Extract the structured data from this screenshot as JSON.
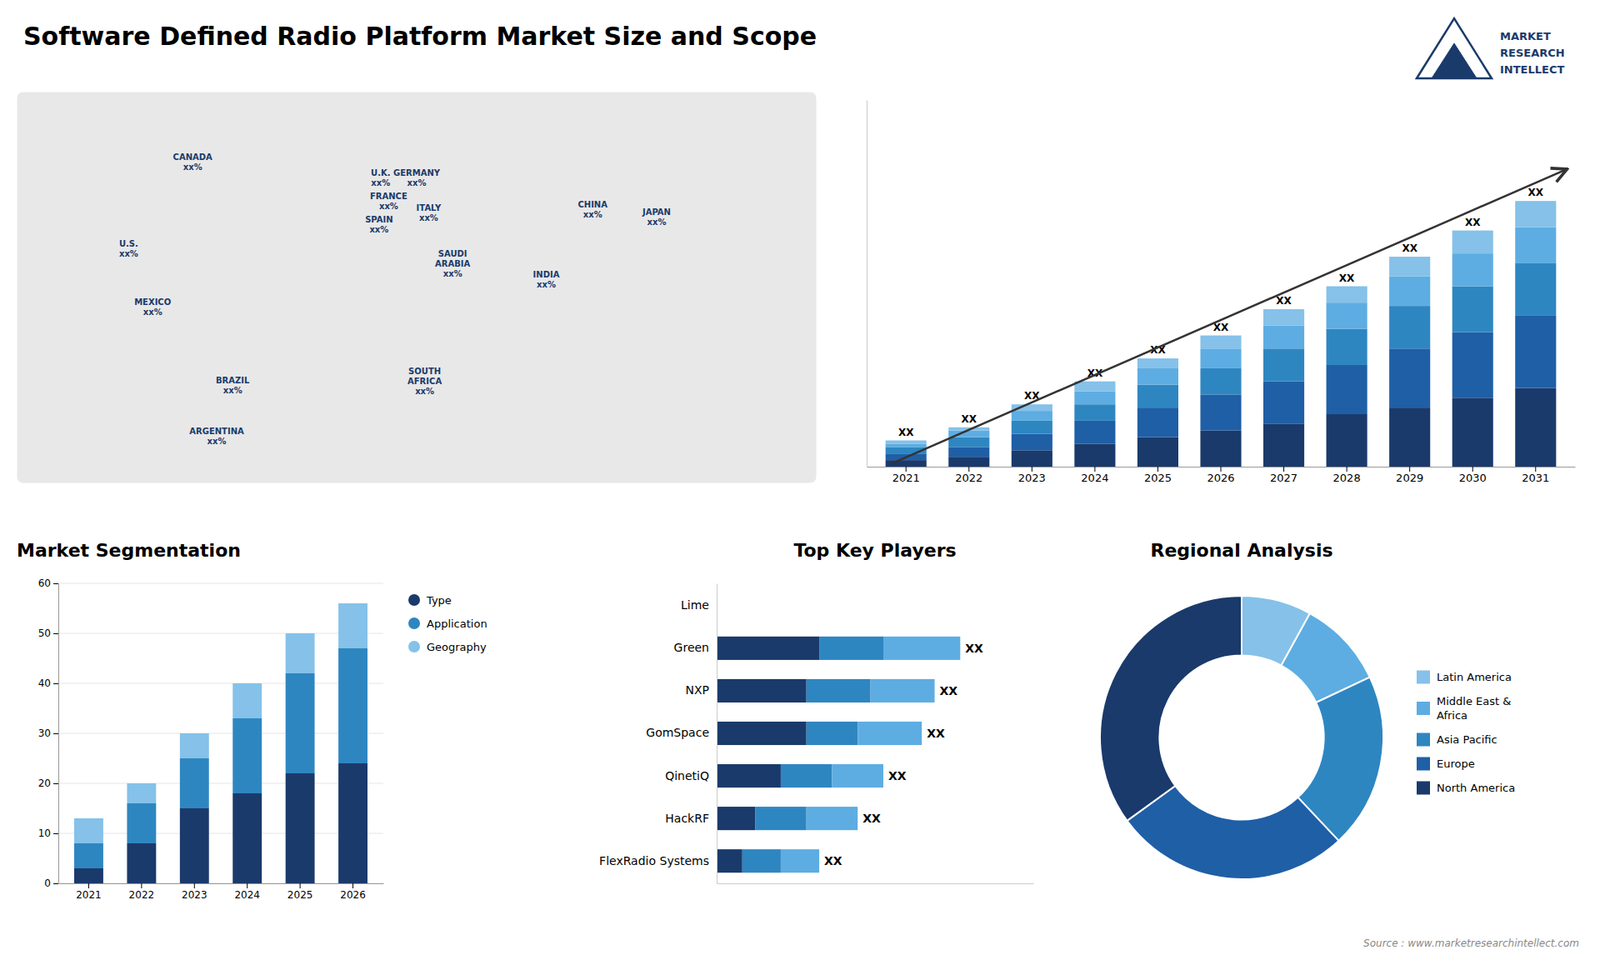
{
  "title": "Software Defined Radio Platform Market Size and Scope",
  "source": "Source : www.marketresearchintellect.com",
  "logo_text": [
    "MARKET",
    "RESEARCH",
    "INTELLECT"
  ],
  "logo_color": "#1a3a6b",
  "chart_data": [
    {
      "type": "map",
      "color": "#e8e8e8",
      "categories": [
        "CANADA",
        "U.S.",
        "MEXICO",
        "BRAZIL",
        "ARGENTINA",
        "U.K.",
        "FRANCE",
        "SPAIN",
        "GERMANY",
        "ITALY",
        "SAUDI\nARABIA",
        "SOUTH\nAFRICA",
        "CHINA",
        "INDIA",
        "JAPAN"
      ],
      "annotations": [
        "xx%",
        "xx%",
        "xx%",
        "xx%",
        "xx%",
        "xx%",
        "xx%",
        "xx%",
        "xx%",
        "xx%",
        "xx%",
        "xx%",
        "xx%",
        "xx%",
        "xx%"
      ]
    },
    {
      "type": "bar",
      "stacked": true,
      "categories": [
        "2021",
        "2022",
        "2023",
        "2024",
        "2025",
        "2026",
        "2027",
        "2028",
        "2029",
        "2030",
        "2031"
      ],
      "series": [
        {
          "color": "#1a3a6b",
          "values": [
            2,
            3,
            5,
            7,
            9,
            11,
            13,
            16,
            18,
            21,
            24
          ]
        },
        {
          "color": "#1f5fa6",
          "values": [
            2,
            3,
            5,
            7,
            9,
            11,
            13,
            15,
            18,
            20,
            22
          ]
        },
        {
          "color": "#2E86C1",
          "values": [
            2,
            3,
            4,
            5,
            7,
            8,
            10,
            11,
            13,
            14,
            16
          ]
        },
        {
          "color": "#5dade2",
          "values": [
            1,
            2,
            3,
            4,
            5,
            6,
            7,
            8,
            9,
            10,
            11
          ]
        },
        {
          "color": "#85C1E9",
          "values": [
            1,
            1,
            2,
            3,
            3,
            4,
            5,
            5,
            6,
            7,
            8
          ]
        }
      ],
      "ylim": [
        0,
        111.78
      ],
      "tick_labels": "x",
      "annotation": "XX",
      "arrow_y": [
        1.2,
        90.72
      ]
    },
    {
      "type": "bar",
      "stacked": true,
      "title": "Market Segmentation",
      "categories": [
        "2021",
        "2022",
        "2023",
        "2024",
        "2025",
        "2026"
      ],
      "series": [
        {
          "name": "Type",
          "color": "#1a3a6b",
          "values": [
            3,
            8,
            15,
            18,
            22,
            24
          ]
        },
        {
          "name": "Application",
          "color": "#2E86C1",
          "values": [
            5,
            8,
            10,
            15,
            20,
            23
          ]
        },
        {
          "name": "Geography",
          "color": "#85C1E9",
          "values": [
            5,
            4,
            5,
            7,
            8,
            9
          ]
        }
      ],
      "ylim": [
        0,
        60
      ],
      "yticks": [
        0,
        10,
        20,
        30,
        40,
        50,
        60
      ],
      "grid": true,
      "legend": "right"
    },
    {
      "type": "bar",
      "orientation": "horizontal",
      "stacked": true,
      "title": "Top Key Players",
      "categories": [
        "FlexRadio Systems",
        "HackRF",
        "QinetiQ",
        "GomSpace",
        "NXP",
        "Green",
        "Lime"
      ],
      "series": [
        {
          "color": "#1a3a6b",
          "values": [
            2,
            3,
            5,
            7,
            7,
            8,
            0
          ]
        },
        {
          "color": "#2E86C1",
          "values": [
            3,
            4,
            4,
            4,
            5,
            5,
            0
          ]
        },
        {
          "color": "#5dade2",
          "values": [
            3,
            4,
            4,
            5,
            5,
            6,
            0
          ]
        }
      ],
      "xlim": [
        0,
        24.7
      ],
      "tick_labels": "y",
      "annotation": "XX"
    },
    {
      "type": "donut",
      "title": "Regional Analysis",
      "categories": [
        "Latin America",
        "Middle East &\nAfrica",
        "Asia Pacific",
        "Europe",
        "North America"
      ],
      "values": [
        8,
        10,
        20,
        27,
        35
      ],
      "colors": [
        "#85C1E9",
        "#5dade2",
        "#2E86C1",
        "#1f5fa6",
        "#1a3a6b"
      ],
      "legend": "right"
    }
  ]
}
